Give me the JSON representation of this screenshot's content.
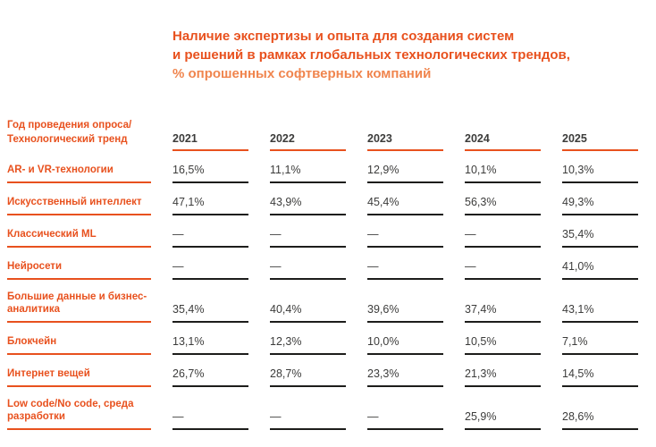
{
  "colors": {
    "accent": "#e8511e",
    "accent_light": "#f0854e",
    "text_dark": "#3c3c3b",
    "rule_dark": "#1d1d1b"
  },
  "title": {
    "line1": "Наличие экспертизы и опыта для создания систем",
    "line2": "и решений в рамках глобальных технологических трендов,",
    "line3": "% опрошенных софтверных компаний"
  },
  "chart_data": {
    "type": "table",
    "title": "Наличие экспертизы и опыта для создания систем и решений в рамках глобальных технологических трендов, % опрошенных софтверных компаний",
    "corner_header": [
      "Год проведения опроса/",
      "Технологический тренд"
    ],
    "columns": [
      "2021",
      "2022",
      "2023",
      "2024",
      "2025"
    ],
    "rows": [
      {
        "label": "AR- и  VR-технологии",
        "values": [
          "16,5%",
          "11,1%",
          "12,9%",
          "10,1%",
          "10,3%"
        ]
      },
      {
        "label": "Искусственный интеллект",
        "values": [
          "47,1%",
          "43,9%",
          "45,4%",
          "56,3%",
          "49,3%"
        ]
      },
      {
        "label": "Классический ML",
        "values": [
          "—",
          "—",
          "—",
          "—",
          "35,4%"
        ]
      },
      {
        "label": "Нейросети",
        "values": [
          "—",
          "—",
          "—",
          "—",
          "41,0%"
        ]
      },
      {
        "label": "Большие данные и бизнес-аналитика",
        "values": [
          "35,4%",
          "40,4%",
          "39,6%",
          "37,4%",
          "43,1%"
        ]
      },
      {
        "label": "Блокчейн",
        "values": [
          "13,1%",
          "12,3%",
          "10,0%",
          "10,5%",
          "7,1%"
        ]
      },
      {
        "label": "Интернет вещей",
        "values": [
          "26,7%",
          "28,7%",
          "23,3%",
          "21,3%",
          "14,5%"
        ]
      },
      {
        "label": "Low code/No code, среда разработки",
        "values": [
          "—",
          "—",
          "—",
          "25,9%",
          "28,6%"
        ]
      }
    ]
  }
}
